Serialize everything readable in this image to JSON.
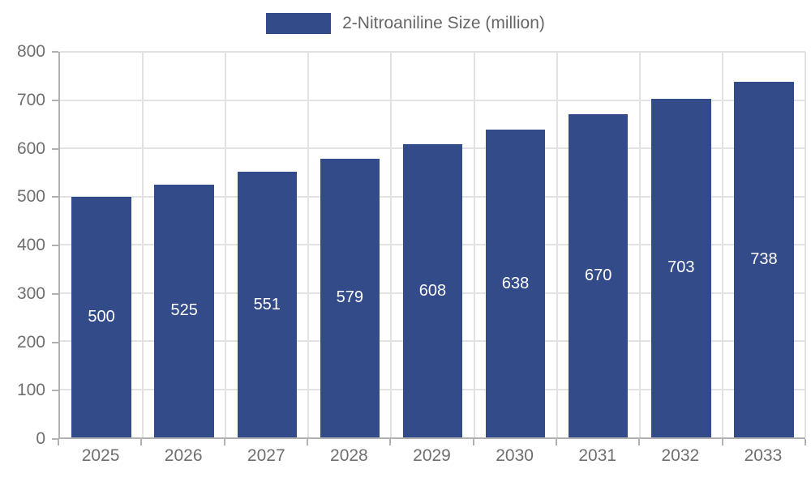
{
  "legend": {
    "label": "2-Nitroaniline Size (million)"
  },
  "chart_data": {
    "type": "bar",
    "title": "",
    "categories": [
      "2025",
      "2026",
      "2027",
      "2028",
      "2029",
      "2030",
      "2031",
      "2032",
      "2033"
    ],
    "series": [
      {
        "name": "2-Nitroaniline Size (million)",
        "values": [
          500,
          525,
          551,
          579,
          608,
          638,
          670,
          703,
          738
        ]
      }
    ],
    "xlabel": "",
    "ylabel": "",
    "ylim": [
      0,
      800
    ],
    "ytick_step": 100,
    "grid": "on",
    "legend_position": "top-center",
    "bar_labels_inside": true
  },
  "colors": {
    "bar": "#344B8A",
    "bar_label": "#FFFFFF",
    "grid": "#E2E2E2",
    "axis": "#B2B2B2",
    "tick_text": "#6F6F6F",
    "legend_text": "#666666"
  }
}
